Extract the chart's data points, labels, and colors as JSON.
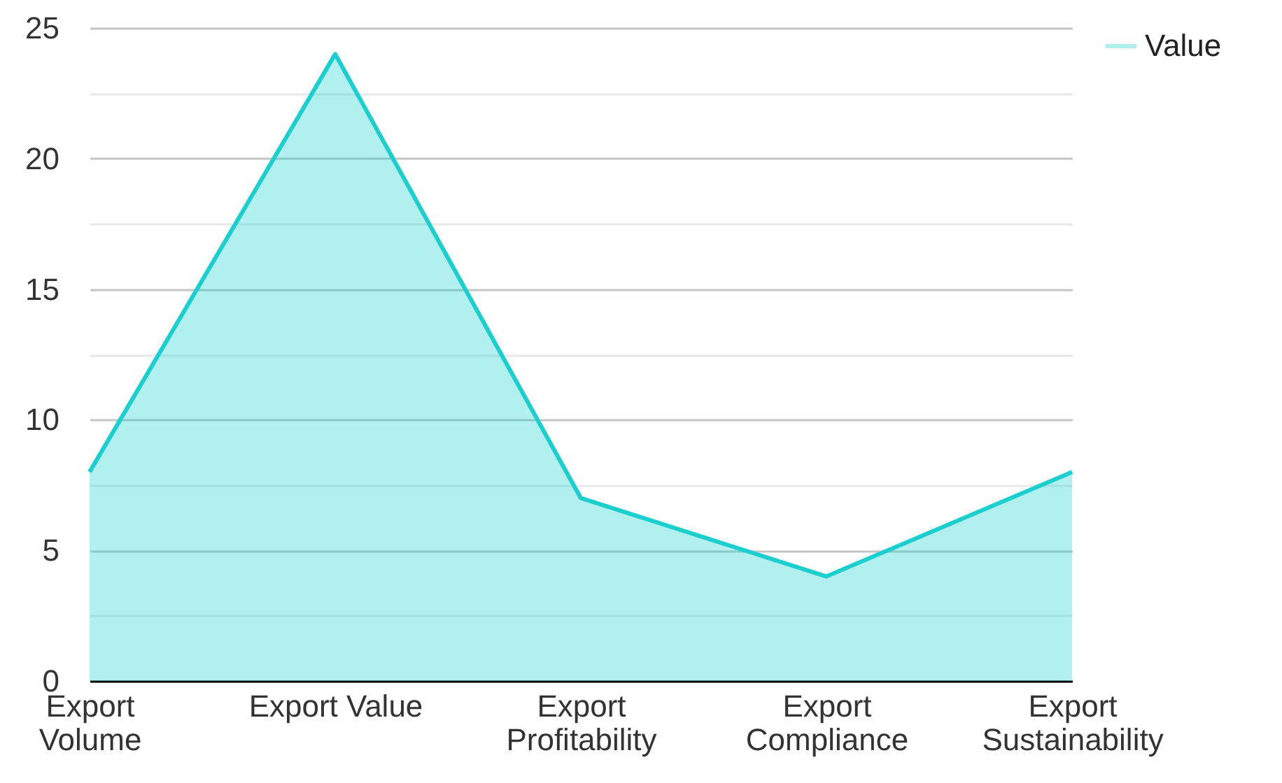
{
  "chart_data": {
    "type": "area",
    "categories": [
      "Export Volume",
      "Export Value",
      "Export Profitability",
      "Export Compliance",
      "Export Sustainability"
    ],
    "series": [
      {
        "name": "Value",
        "color": "#1ccfcf",
        "values": [
          8,
          24,
          7,
          4,
          8
        ]
      }
    ],
    "ylim": [
      0,
      25
    ],
    "yticks": [
      0,
      {
        "value": 2.5,
        "label": null
      },
      5,
      {
        "value": 7.5,
        "label": null
      },
      10,
      {
        "value": 12.5,
        "label": null
      },
      15,
      {
        "value": 17.5,
        "label": null
      },
      20,
      {
        "value": 22.5,
        "label": null
      },
      25
    ],
    "grid": "y",
    "legend": "top right"
  }
}
